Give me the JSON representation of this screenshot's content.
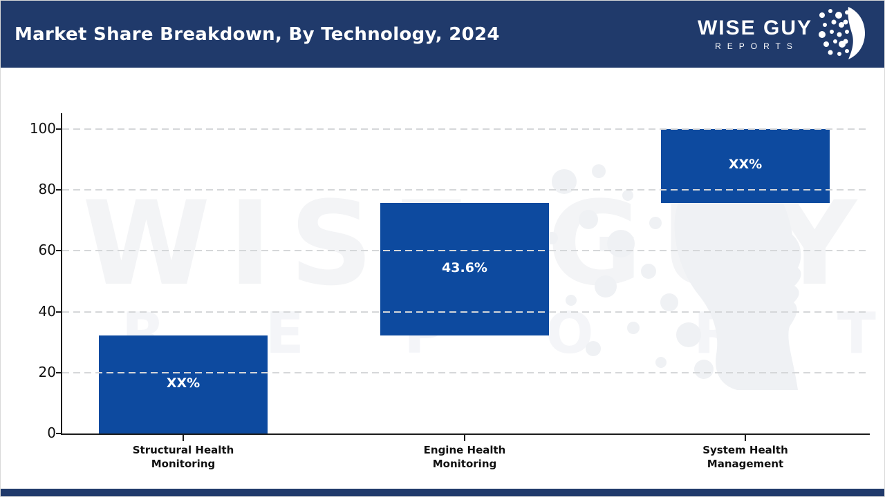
{
  "header": {
    "title": "Market Share Breakdown, By Technology, 2024",
    "logo": {
      "line1": "WISE GUY",
      "line2": "REPORTS"
    }
  },
  "watermark": {
    "line1": "WISE GUY",
    "line2": "R E P O R T S"
  },
  "colors": {
    "header_bg": "#203a6b",
    "footer_bg": "#203a6b",
    "bar": "#0d4a9f",
    "grid": "#d5d7d9",
    "axis": "#1a1a1a",
    "bar_label": "#ffffff",
    "watermark": "#f3f4f6"
  },
  "chart_data": {
    "type": "bar",
    "subtype": "waterfall",
    "title": "Market Share Breakdown, By Technology, 2024",
    "xlabel": "",
    "ylabel": "",
    "categories": [
      [
        "Structural Health",
        "Monitoring"
      ],
      [
        "Engine Health",
        "Monitoring"
      ],
      [
        "System Health",
        "Management"
      ]
    ],
    "series": [
      {
        "name": "Structural Health Monitoring",
        "start": 0,
        "end": 32.2,
        "height": 32.2,
        "label": "XX%"
      },
      {
        "name": "Engine Health Monitoring",
        "start": 32.2,
        "end": 75.8,
        "height": 43.6,
        "label": "43.6%"
      },
      {
        "name": "System Health Management",
        "start": 75.8,
        "end": 100,
        "height": 24.2,
        "label": "XX%"
      }
    ],
    "yticks": [
      0,
      20,
      40,
      60,
      80,
      100
    ],
    "ylim": [
      0,
      105
    ],
    "grid": "dashed-horizontal-over-bars",
    "legend": "none"
  }
}
